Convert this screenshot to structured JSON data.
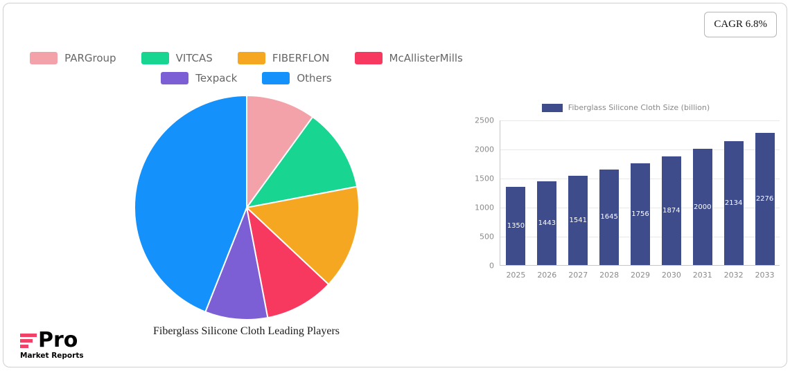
{
  "badge": {
    "cagr": "CAGR 6.8%"
  },
  "logo": {
    "main": "Pro",
    "sub": "Market Reports"
  },
  "chart_data": [
    {
      "type": "pie",
      "title": "Fiberglass Silicone Cloth Leading Players",
      "labels": [
        "PARGroup",
        "VITCAS",
        "FIBERFLON",
        "McAllisterMills",
        "Texpack",
        "Others"
      ],
      "values": [
        10,
        12,
        15,
        10,
        9,
        44
      ],
      "colors": [
        "#F4A2A9",
        "#18D592",
        "#F6A722",
        "#F8395F",
        "#7D5FD5",
        "#1591FB"
      ],
      "legend_position": "top",
      "start_angle_deg": -90,
      "direction": "clockwise"
    },
    {
      "type": "bar",
      "legend_label": "Fiberglass Silicone Cloth Size (billion)",
      "categories": [
        "2025",
        "2026",
        "2027",
        "2028",
        "2029",
        "2030",
        "2031",
        "2032",
        "2033"
      ],
      "values": [
        1350,
        1443,
        1541,
        1645,
        1756,
        1874,
        2000,
        2134,
        2276
      ],
      "bar_color": "#3E4C8C",
      "value_label_color": "#ffffff",
      "ylim": [
        0,
        2500
      ],
      "yticks": [
        0,
        500,
        1000,
        1500,
        2000,
        2500
      ],
      "grid": true,
      "legend_position": "top"
    }
  ]
}
